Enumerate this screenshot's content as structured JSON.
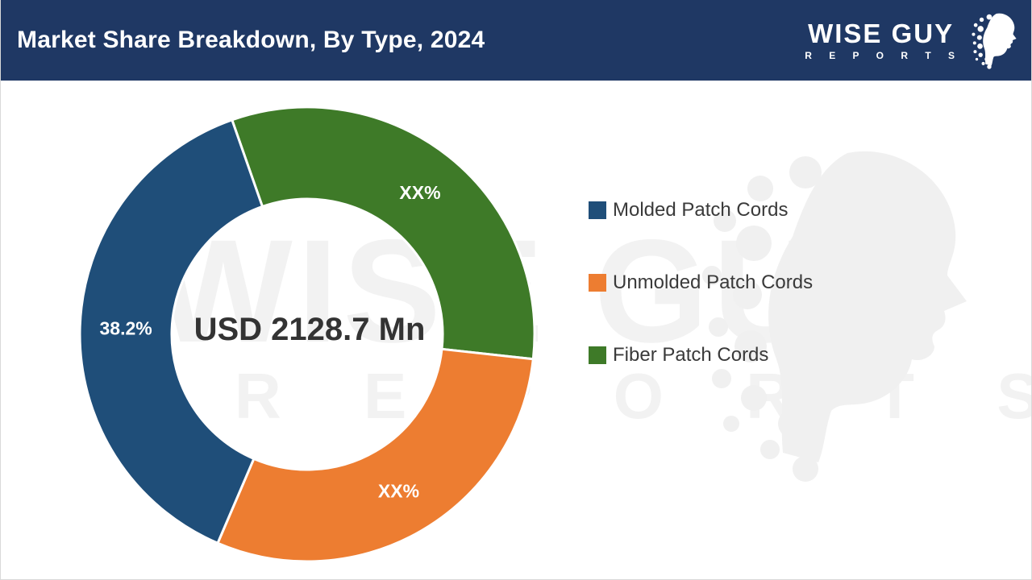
{
  "header": {
    "title": "Market Share Breakdown, By Type, 2024",
    "logo": {
      "line1": "WISE GUY",
      "line2": "R E P O R T S"
    }
  },
  "watermark": {
    "line1": "WISE GUY",
    "line2": "R E P O R T S"
  },
  "chart_data": {
    "type": "pie",
    "subtype": "donut",
    "title": "Market Share Breakdown, By Type, 2024",
    "center_label": "USD 2128.7 Mn",
    "start_angle_deg": -19.3,
    "legend_position": "right",
    "series": [
      {
        "name": "Fiber Patch Cords",
        "value": 32.1,
        "display_label": "XX%",
        "color": "#3e7a28"
      },
      {
        "name": "Unmolded Patch Cords",
        "value": 29.7,
        "display_label": "XX%",
        "color": "#ed7d31"
      },
      {
        "name": "Molded Patch Cords",
        "value": 38.2,
        "display_label": "38.2%",
        "color": "#1f4e79"
      }
    ]
  },
  "legend": {
    "items": [
      {
        "label": "Molded Patch Cords",
        "color": "#1f4e79"
      },
      {
        "label": "Unmolded Patch Cords",
        "color": "#ed7d31"
      },
      {
        "label": "Fiber Patch Cords",
        "color": "#3e7a28"
      }
    ]
  },
  "colors": {
    "header_bg": "#1f3864",
    "segment_blue": "#1f4e79",
    "segment_orange": "#ed7d31",
    "segment_green": "#3e7a28",
    "center_text": "#333333",
    "watermark": "#f2f2f2",
    "border": "#d9d9d9"
  }
}
